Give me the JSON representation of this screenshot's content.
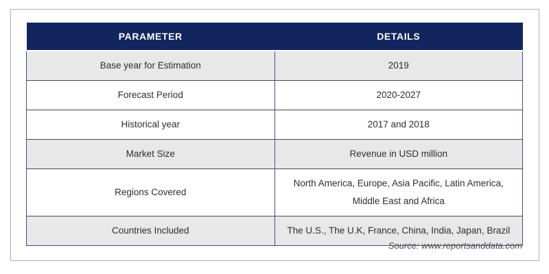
{
  "table": {
    "headers": [
      {
        "label": "PARAMETER"
      },
      {
        "label": "DETAILS"
      }
    ],
    "rows": [
      {
        "parameter": "Base year for Estimation",
        "details": "2019",
        "shaded": true
      },
      {
        "parameter": "Forecast Period",
        "details": "2020-2027",
        "shaded": false
      },
      {
        "parameter": "Historical year",
        "details": "2017 and 2018",
        "shaded": false
      },
      {
        "parameter": "Market Size",
        "details": "Revenue in USD million",
        "shaded": true
      },
      {
        "parameter": "Regions Covered",
        "details": "North America, Europe, Asia Pacific, Latin America, Middle East and Africa",
        "shaded": false
      },
      {
        "parameter": "Countries Included",
        "details": "The U.S., The  U.K, France, China, India, Japan, Brazil",
        "shaded": true
      }
    ]
  },
  "source": {
    "label": "Source: www.reportsanddata.com"
  },
  "colors": {
    "header_bg": "#12255e",
    "header_text": "#ffffff",
    "row_shaded": "#e8e8e8",
    "row_plain": "#ffffff",
    "border_h": "#46464e",
    "border_v": "#3c4c82",
    "cell_text": "#2e2e2e",
    "source_text": "#4a4a4a",
    "card_border": "#b0b0b0"
  }
}
